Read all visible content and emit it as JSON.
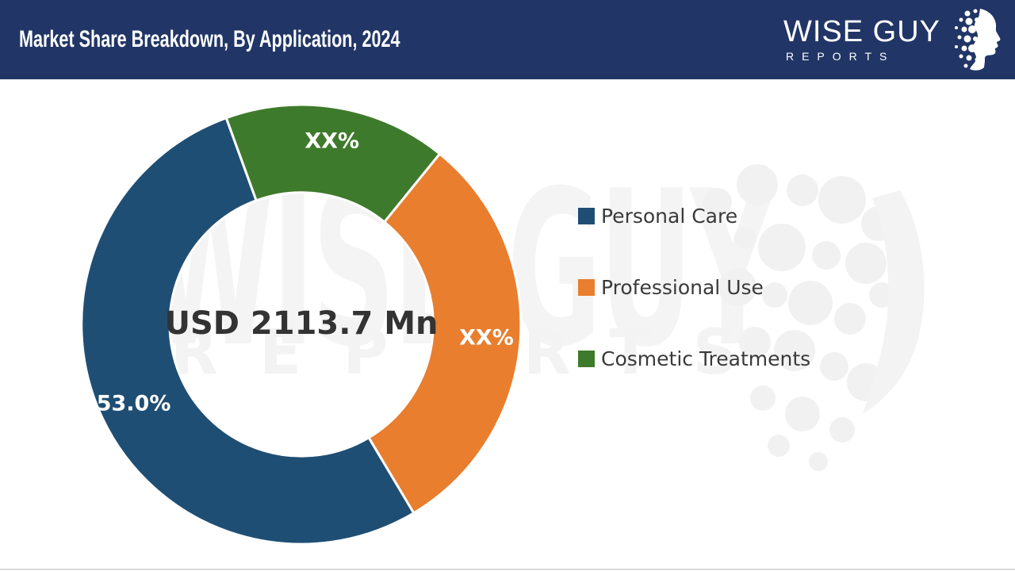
{
  "header": {
    "title": "Market Share Breakdown, By Application, 2024",
    "background_color": "#213666",
    "logo": {
      "wordmark": "WISE GUY",
      "subtitle": "REPORTS"
    }
  },
  "watermark": {
    "wordmark": "WISE GUY",
    "subtitle": "REPORTS"
  },
  "chart_data": {
    "type": "pie",
    "subtype": "donut",
    "title": "Market Share Breakdown, By Application, 2024",
    "center_label": "USD 2113.7 Mn",
    "categories": [
      "Personal Care",
      "Professional Use",
      "Cosmetic Treatments"
    ],
    "values_pct": [
      53.0,
      30.6,
      16.4
    ],
    "slice_labels": [
      "53.0%",
      "XX%",
      "XX%"
    ],
    "colors": [
      "#1F4E74",
      "#E87E2E",
      "#3E7A2B"
    ],
    "start_angle_deg": 110,
    "direction": "counterclockwise",
    "inner_radius_ratio": 0.6,
    "slice_label_radius_ratio": 0.845,
    "separator_color": "#ffffff",
    "legend_position": "right",
    "center_text_color": "#333333",
    "slice_label_color": "#ffffff"
  }
}
